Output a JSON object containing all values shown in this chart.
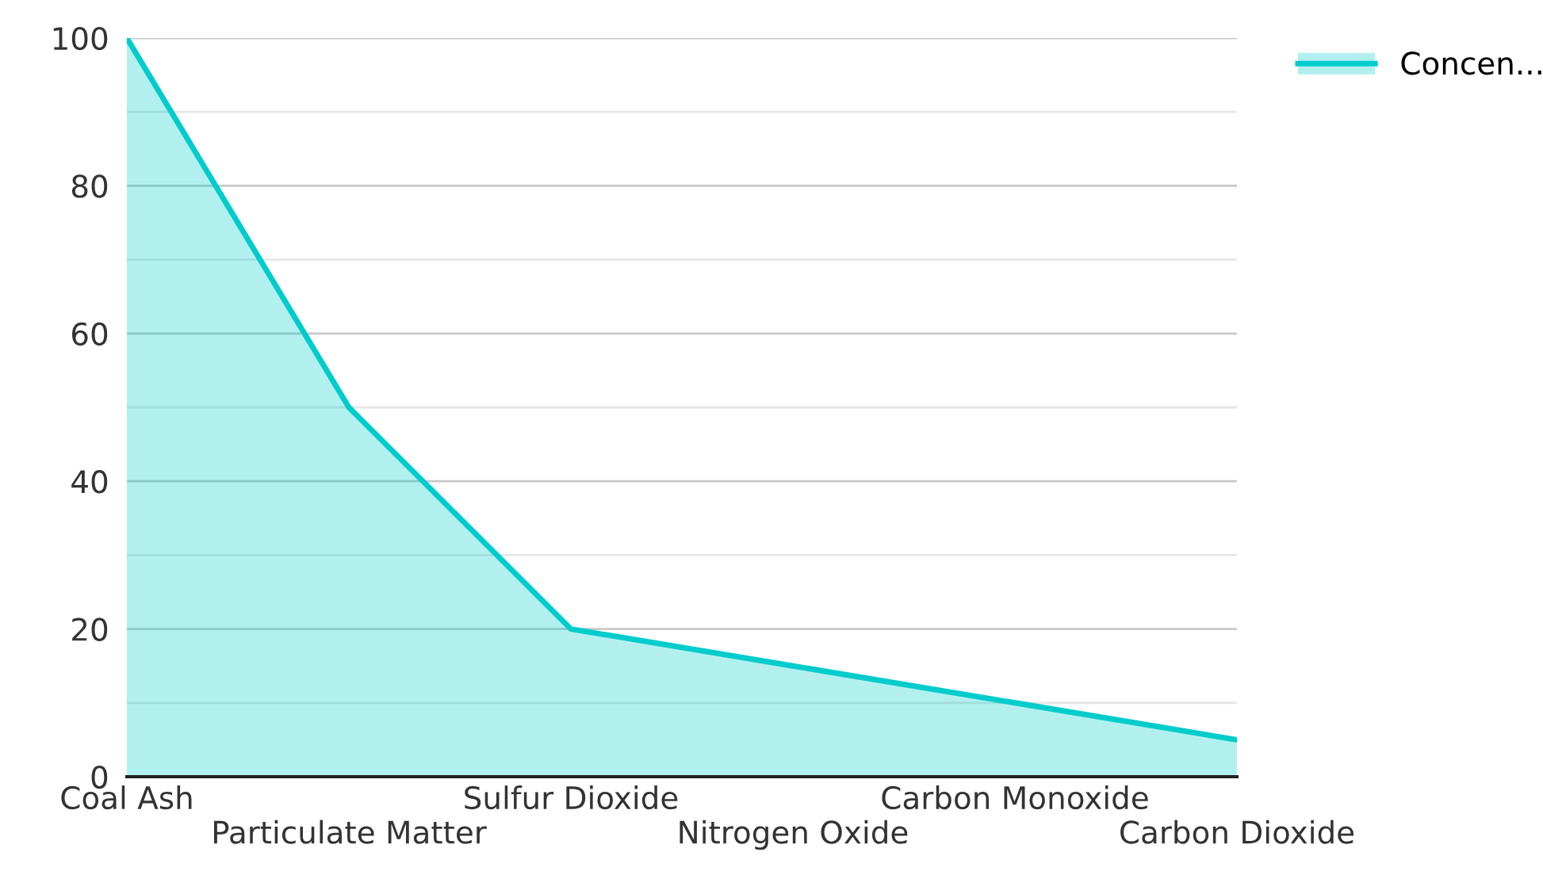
{
  "chart_data": {
    "type": "area",
    "categories": [
      "Coal Ash",
      "Particulate Matter",
      "Sulfur Dioxide",
      "Nitrogen Oxide",
      "Carbon Monoxide",
      "Carbon Dioxide"
    ],
    "series": [
      {
        "name": "Concen...",
        "color": "#00cccc",
        "values": [
          100,
          50,
          20,
          15,
          10,
          5
        ]
      }
    ],
    "ylim": [
      0,
      100
    ],
    "yticks": [
      0,
      {
        "value": 10,
        "label": null
      },
      20,
      {
        "value": 30,
        "label": null
      },
      40,
      {
        "value": 50,
        "label": null
      },
      60,
      {
        "value": 70,
        "label": null
      },
      80,
      {
        "value": 90,
        "label": null
      },
      100
    ],
    "grid": "y",
    "legend": "top right",
    "marker": "none",
    "line_style": "solid"
  }
}
